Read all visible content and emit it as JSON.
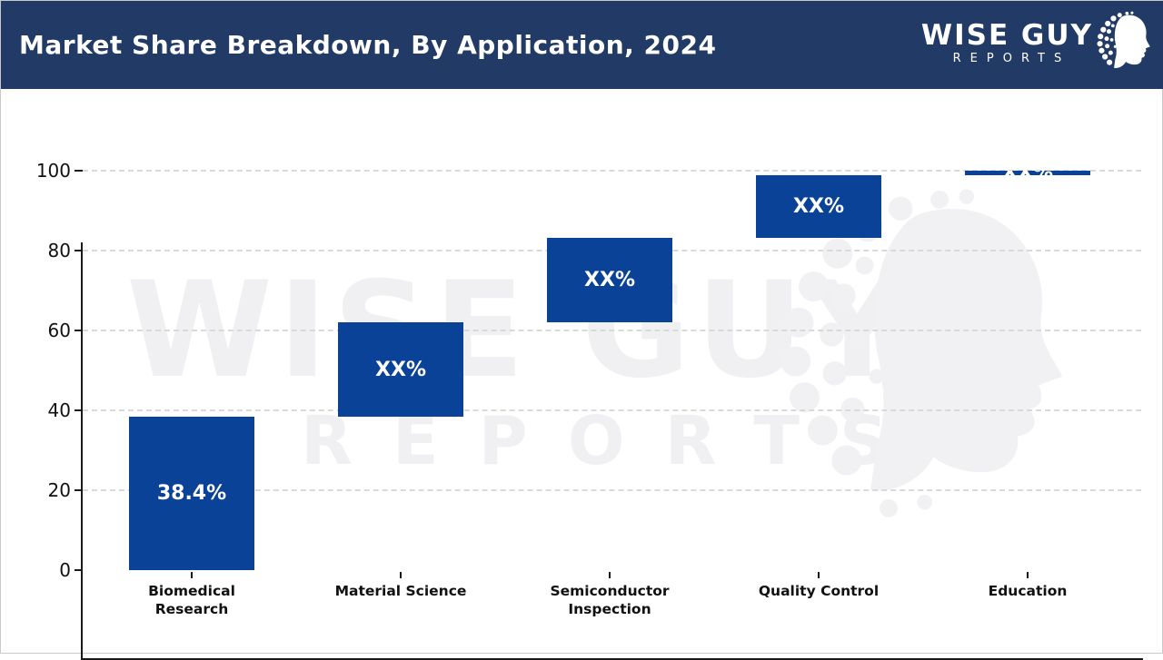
{
  "header": {
    "title": "Market Share Breakdown, By Application, 2024",
    "bg_color": "#213a66",
    "logo": {
      "line1": "WISE GUY",
      "line2": "REPORTS"
    }
  },
  "watermark": {
    "line1": "WISE GUY",
    "line2": "REPORTS"
  },
  "chart_data": {
    "type": "bar",
    "subtype": "waterfall",
    "title": "Market Share Breakdown, By Application, 2024",
    "categories": [
      "Biomedical Research",
      "Material Science",
      "Semiconductor Inspection",
      "Quality Control",
      "Education"
    ],
    "segments": [
      {
        "category": "Biomedical Research",
        "start": 0,
        "end": 38.4,
        "label": "38.4%"
      },
      {
        "category": "Material Science",
        "start": 38.4,
        "end": 62.0,
        "label": "XX%"
      },
      {
        "category": "Semiconductor Inspection",
        "start": 62.0,
        "end": 83.2,
        "label": "XX%"
      },
      {
        "category": "Quality Control",
        "start": 83.2,
        "end": 98.8,
        "label": "XX%"
      },
      {
        "category": "Education",
        "start": 98.8,
        "end": 100.0,
        "label": "XX%"
      }
    ],
    "values_pct": [
      38.4,
      23.6,
      21.2,
      15.6,
      1.2
    ],
    "xlabel": "",
    "ylabel": "",
    "ylim": [
      0,
      100
    ],
    "yticks": [
      0,
      20,
      40,
      60,
      80,
      100
    ],
    "grid": "horizontal-dashed",
    "legend": "none",
    "bar_color": "#0a4298",
    "bar_label_color": "#ffffff",
    "axis_color": "#1a1a1a",
    "gridline_color": "#d9d9d9"
  }
}
